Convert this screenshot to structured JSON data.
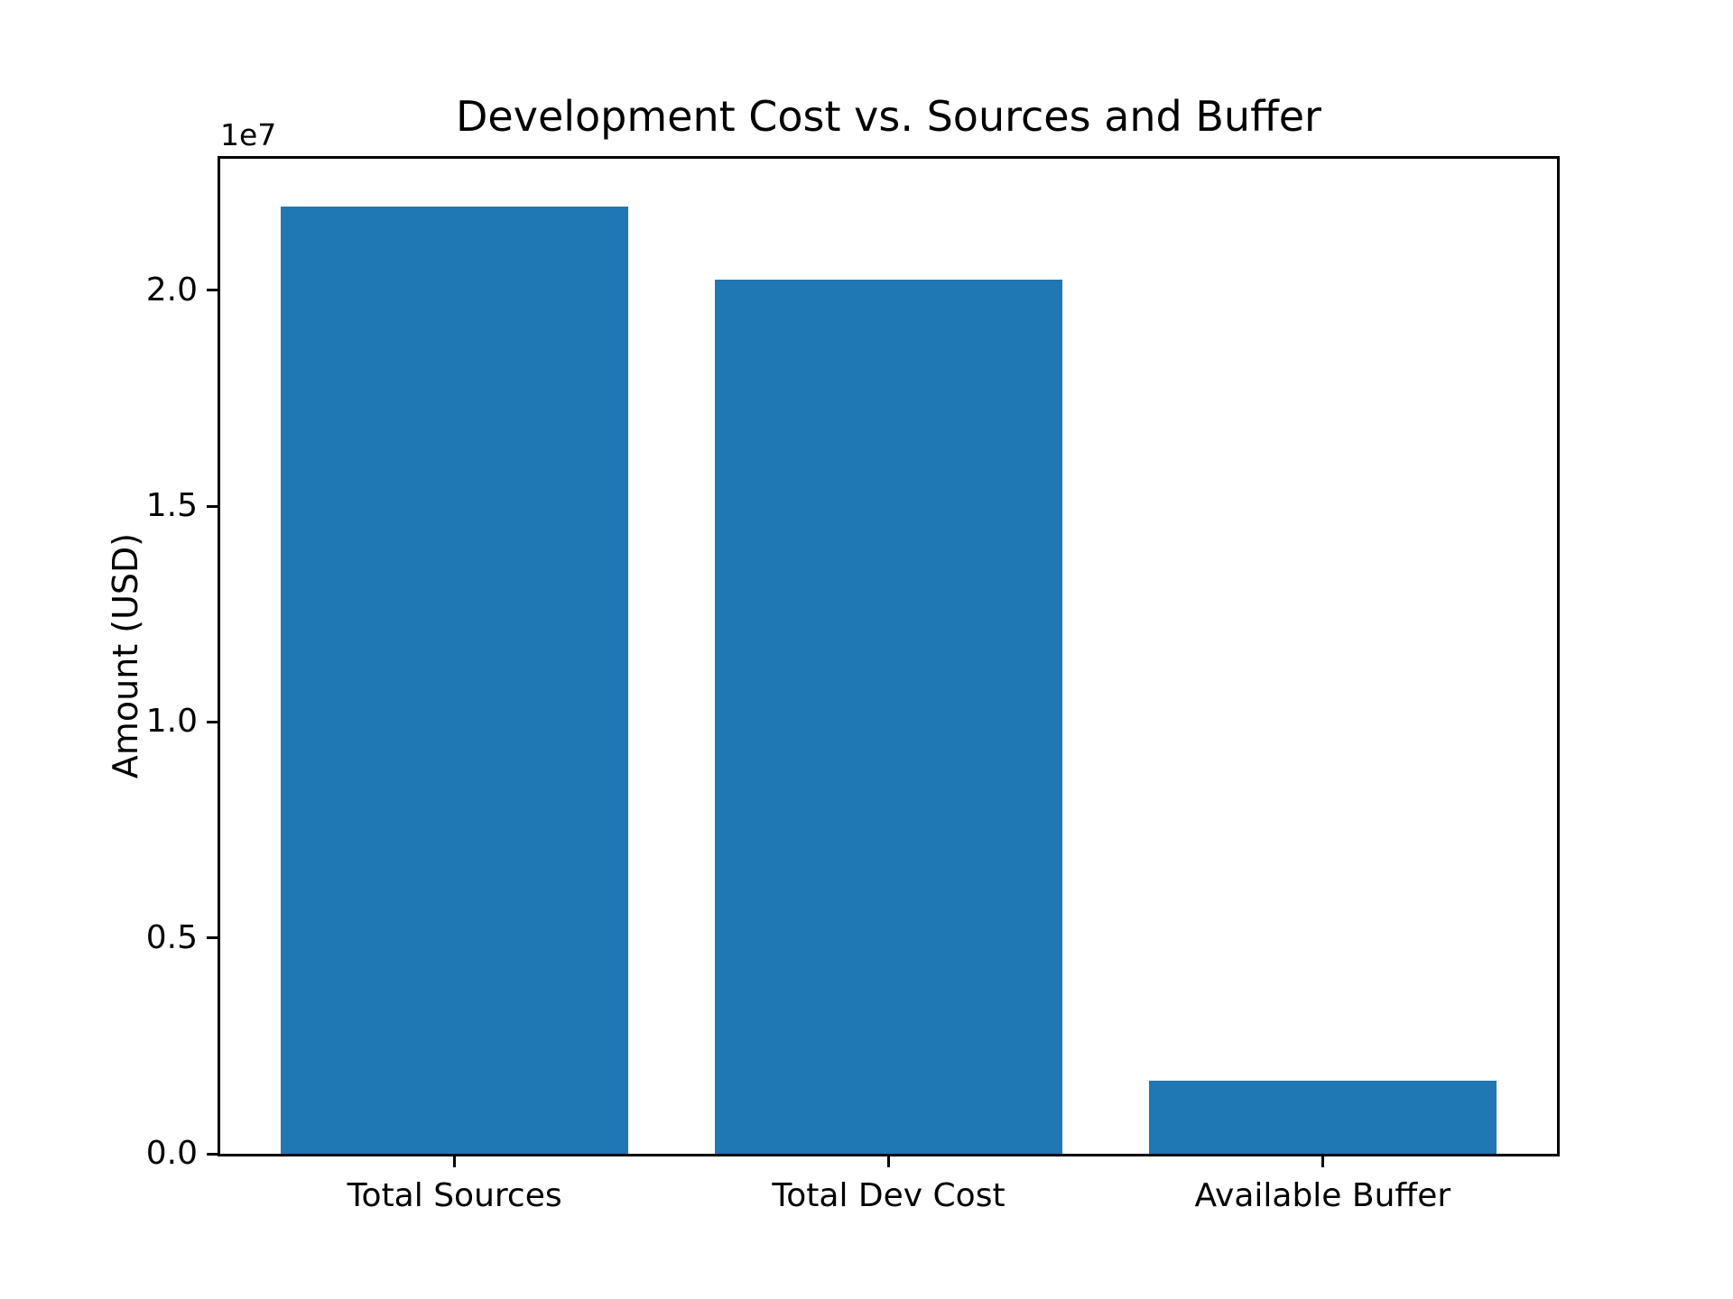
{
  "chart_data": {
    "type": "bar",
    "title": "Development Cost vs. Sources and Buffer",
    "xlabel": "",
    "ylabel": "Amount (USD)",
    "offset_text": "1e7",
    "categories": [
      "Total Sources",
      "Total Dev Cost",
      "Available Buffer"
    ],
    "values": [
      21950000,
      20250000,
      1700000
    ],
    "bar_color": "#1f77b4",
    "ylim": [
      0,
      23047500
    ],
    "y_ticks": [
      0,
      5000000,
      10000000,
      15000000,
      20000000
    ],
    "y_tick_labels": [
      "0.0",
      "0.5",
      "1.0",
      "1.5",
      "2.0"
    ],
    "grid": false,
    "legend_position": "none"
  }
}
